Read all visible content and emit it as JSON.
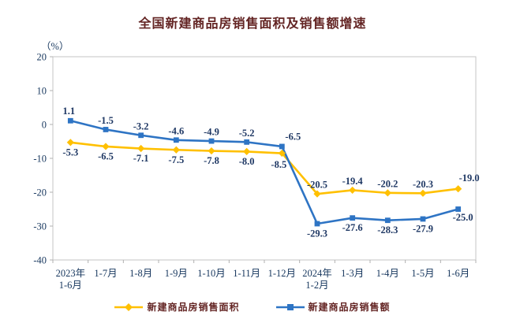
{
  "page": {
    "background": "#FFFFFF"
  },
  "chart_data": {
    "type": "line",
    "title": "全国新建商品房销售面积及销售额增速",
    "unit_label": "（%）",
    "categories": [
      [
        "2023年",
        "1-6月"
      ],
      [
        "1-7月"
      ],
      [
        "1-8月"
      ],
      [
        "1-9月"
      ],
      [
        "1-10月"
      ],
      [
        "1-11月"
      ],
      [
        "1-12月"
      ],
      [
        "2024年",
        "1-2月"
      ],
      [
        "1-3月"
      ],
      [
        "1-4月"
      ],
      [
        "1-5月"
      ],
      [
        "1-6月"
      ]
    ],
    "series": [
      {
        "name": "新建商品房销售面积",
        "color": "#FFC000",
        "marker": "diamond",
        "values": [
          -5.3,
          -6.5,
          -7.1,
          -7.5,
          -7.8,
          -8.0,
          -8.5,
          -20.5,
          -19.4,
          -20.2,
          -20.3,
          -19.0
        ],
        "label_offsets": {
          "6": [
            -4,
            2
          ],
          "11": [
            14,
            -2
          ]
        }
      },
      {
        "name": "新建商品房销售额",
        "color": "#2E74C4",
        "marker": "square",
        "values": [
          1.1,
          -1.5,
          -3.2,
          -4.6,
          -4.9,
          -5.2,
          -6.5,
          -29.3,
          -27.6,
          -28.3,
          -27.9,
          -25.0
        ],
        "label_offsets": {
          "0": [
            -2,
            -1
          ],
          "6": [
            14,
            -1
          ],
          "11": [
            6,
            -2
          ]
        }
      }
    ],
    "ylim": [
      -40,
      20
    ],
    "ytick_step": 10,
    "grid": false,
    "legend_position": "bottom",
    "colors": {
      "title": "#632423",
      "legend_text": "#632423",
      "axis_label": "#17375E",
      "data_label": "#1F3864",
      "plot_border": "#C6C6C6",
      "tick": "#B0B0B0"
    }
  }
}
